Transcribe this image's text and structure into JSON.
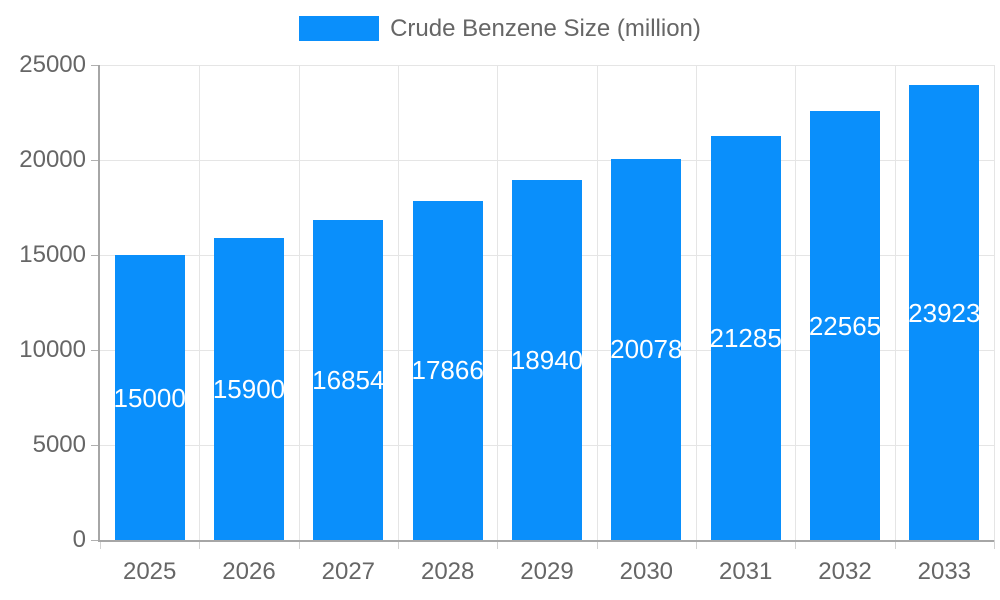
{
  "chart_data": {
    "type": "bar",
    "title": "Crude Benzene Size (million)",
    "xlabel": "",
    "ylabel": "",
    "categories": [
      "2025",
      "2026",
      "2027",
      "2028",
      "2029",
      "2030",
      "2031",
      "2032",
      "2033"
    ],
    "series": [
      {
        "name": "Crude Benzene Size (million)",
        "values": [
          15000,
          15900,
          16854,
          17866,
          18940,
          20078,
          21285,
          22565,
          23923
        ]
      }
    ],
    "ylim": [
      0,
      25000
    ],
    "y_ticks": [
      0,
      5000,
      10000,
      15000,
      20000,
      25000
    ],
    "grid": true,
    "legend_position": "top",
    "bar_labels_shown": true,
    "colors": {
      "bar": "#0a8ffb",
      "bar_label_text": "#ffffff",
      "axis_text": "#666666",
      "gridline": "#e5e5e5",
      "axis_line": "#a6a6a6",
      "background": "#ffffff"
    }
  }
}
